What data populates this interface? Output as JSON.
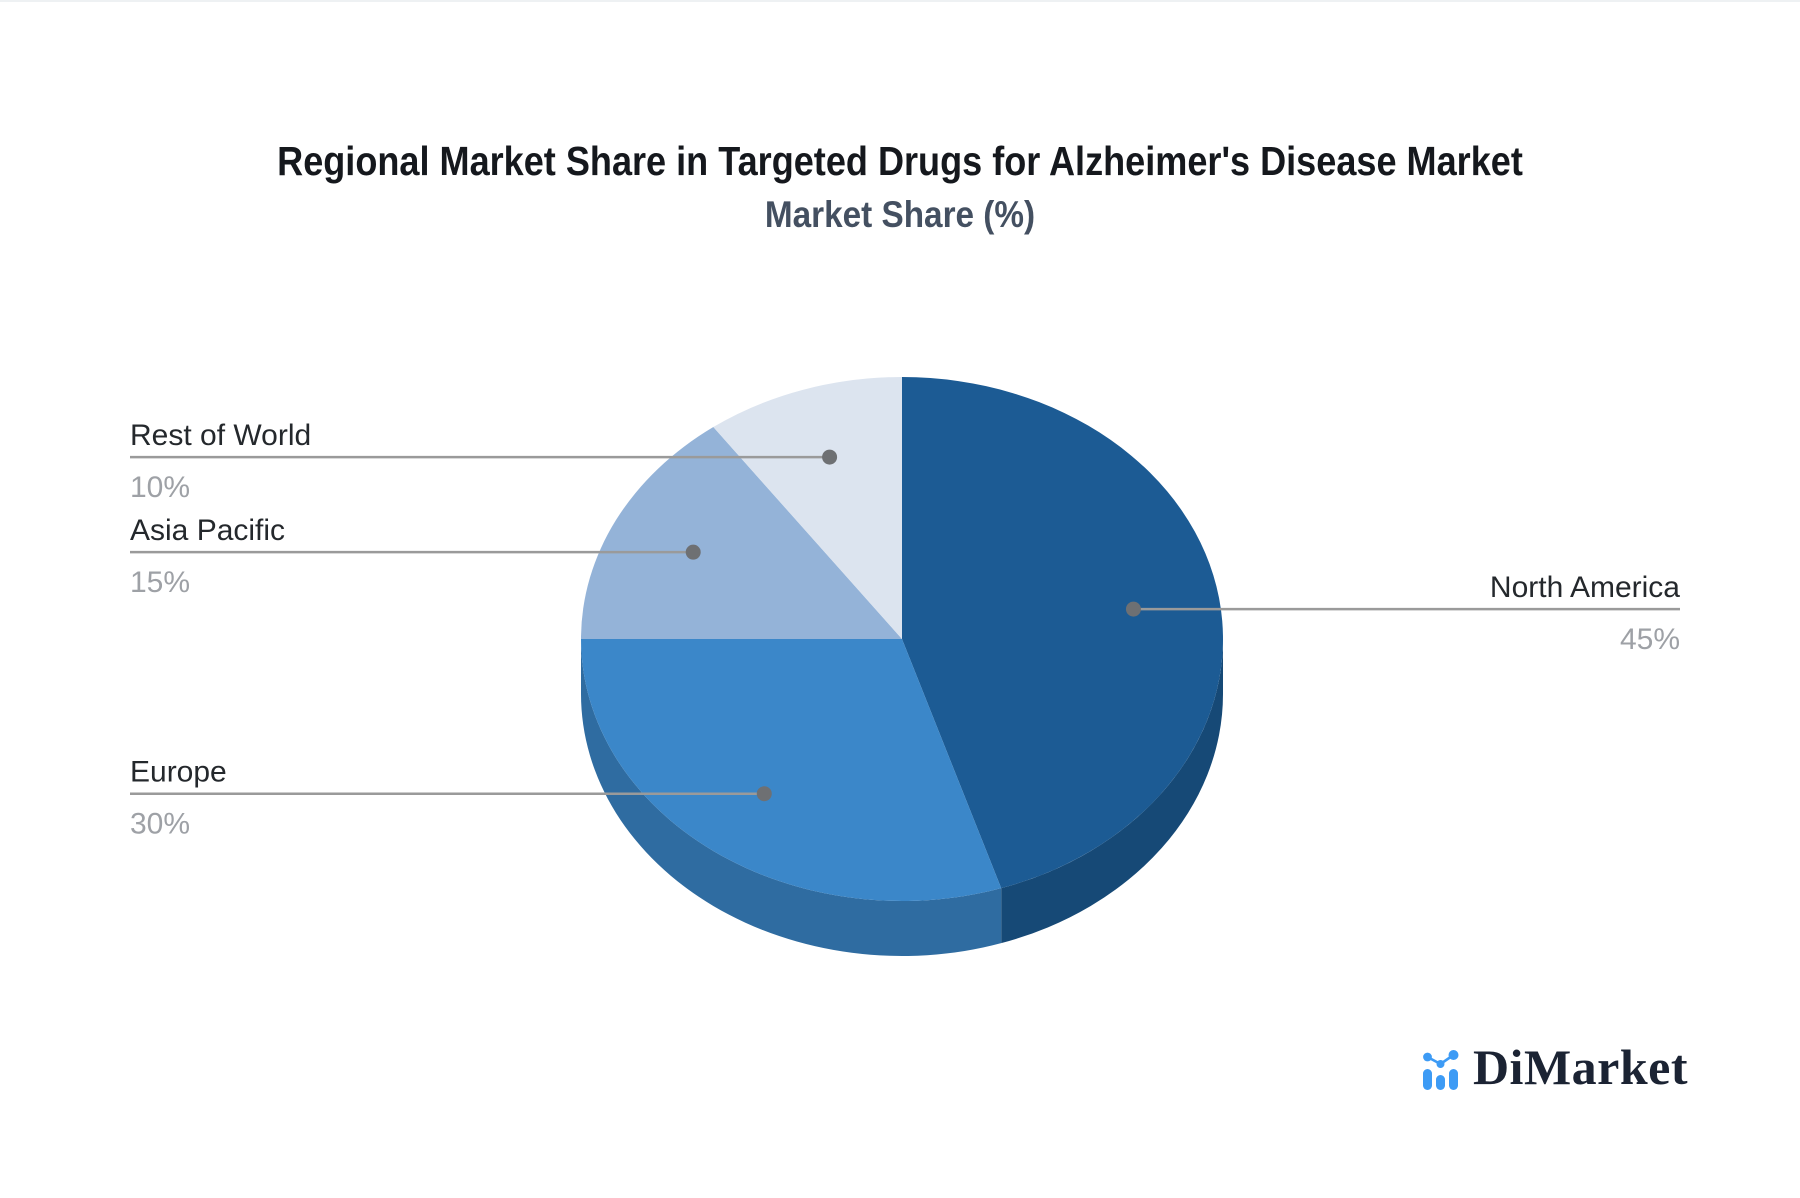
{
  "header": {
    "title": "Regional Market Share in Targeted Drugs for Alzheimer's Disease Market",
    "subtitle": "Market Share (%)"
  },
  "chart_data": {
    "type": "pie",
    "style": "3d",
    "title": "Regional Market Share in Targeted Drugs for Alzheimer's Disease Market",
    "subtitle": "Market Share (%)",
    "unit": "%",
    "direction": "clockwise",
    "start_angle_deg": 0,
    "legend_position": "leader-lines",
    "slices": [
      {
        "label": "North America",
        "value": 45,
        "display": "45%",
        "color": "#1C5B94"
      },
      {
        "label": "Europe",
        "value": 30,
        "display": "30%",
        "color": "#3B87C9"
      },
      {
        "label": "Asia Pacific",
        "value": 15,
        "display": "15%",
        "color": "#94B3D8"
      },
      {
        "label": "Rest of World",
        "value": 10,
        "display": "10%",
        "color": "#DCE4EF"
      }
    ],
    "label_text_color": "#24282c",
    "value_text_color": "#9ea1a6",
    "leader_line_color": "#9a9a9a",
    "leader_dot_color": "#6e7073"
  },
  "branding": {
    "logo_text": "DiMarket",
    "logo_icon": "bar-line-chart-icon",
    "logo_icon_color": "#3D9BF5",
    "logo_text_color": "#1b2333"
  }
}
